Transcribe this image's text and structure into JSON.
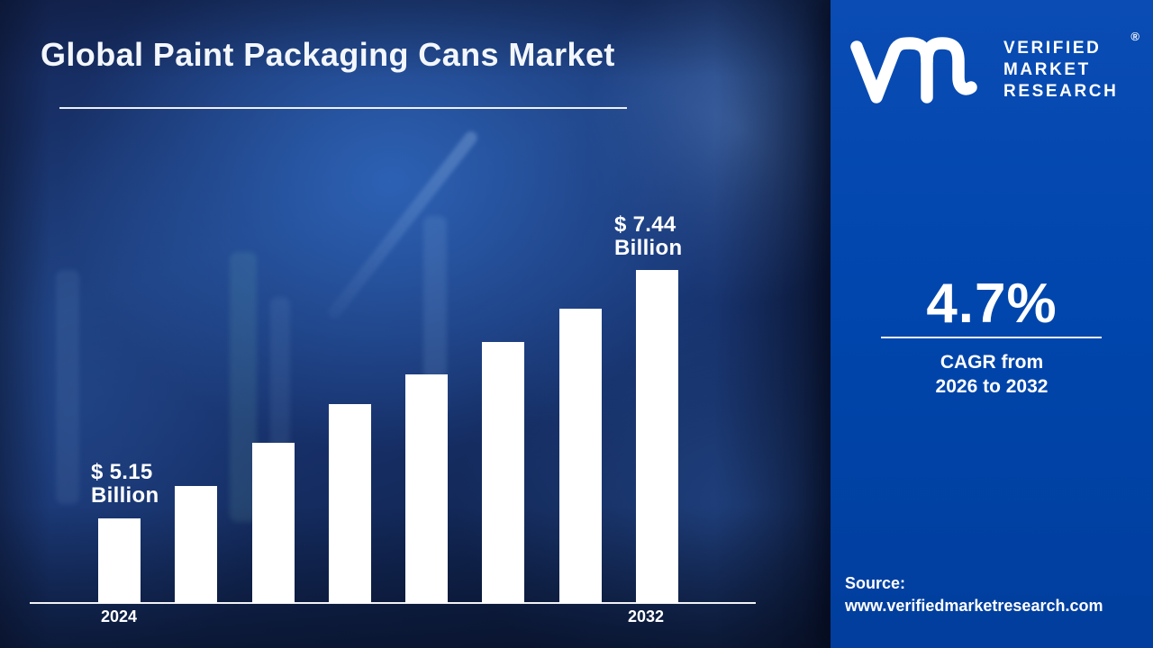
{
  "header": {
    "title": "Global Paint Packaging Cans Market"
  },
  "chart": {
    "start_value_label": {
      "line1": "$ 5.15",
      "line2": "Billion"
    },
    "end_value_label": {
      "line1": "$ 7.44",
      "line2": "Billion"
    },
    "x_tick_start": "2024",
    "x_tick_end": "2032"
  },
  "chart_data": {
    "type": "bar",
    "title": "Global Paint Packaging Cans Market",
    "unit": "USD Billion",
    "bar_count": 8,
    "visible_x_ticks": [
      "2024",
      "2032"
    ],
    "values": [
      5.15,
      5.45,
      5.85,
      6.2,
      6.48,
      6.78,
      7.08,
      7.44
    ],
    "labeled_values": {
      "2024": "$ 5.15 Billion",
      "2032": "$ 7.44 Billion"
    },
    "value_note": "only first and last bars carry data labels; intermediate values estimated from bar heights",
    "ylim": [
      0,
      8
    ],
    "grid": false,
    "legend": false,
    "bar_color": "#ffffff"
  },
  "brand": {
    "logo": "vmr-monogram",
    "name_line1": "VERIFIED",
    "name_line2": "MARKET",
    "name_line3": "RESEARCH",
    "registered_mark": "®"
  },
  "stats": {
    "cagr_value": "4.7%",
    "caption_line1": "CAGR from",
    "caption_line2": "2026 to 2032"
  },
  "source": {
    "label": "Source:",
    "url": "www.verifiedmarketresearch.com"
  },
  "colors": {
    "panel_blue": "#0046ad",
    "background_navy": "#15285a",
    "bar_white": "#ffffff",
    "accent_bright_blue": "#2f66bc",
    "text_white": "#ffffff"
  }
}
